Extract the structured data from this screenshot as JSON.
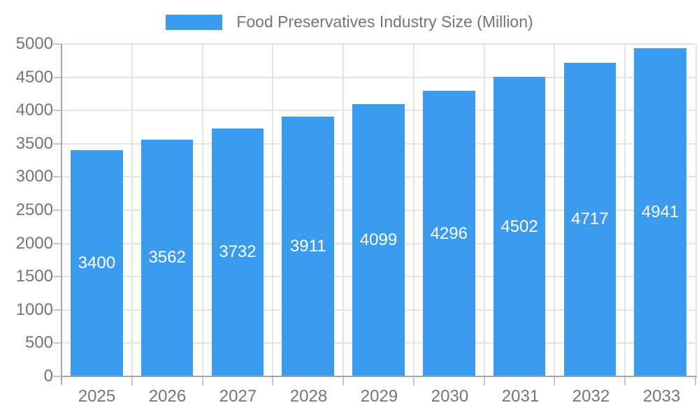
{
  "chart_data": {
    "type": "bar",
    "title": "Food Preservatives Industry Size (Million)",
    "legend": {
      "position": "top",
      "entries": [
        {
          "label": "Food Preservatives Industry Size (Million)",
          "color": "#3B9CEE"
        }
      ]
    },
    "categories": [
      "2025",
      "2026",
      "2027",
      "2028",
      "2029",
      "2030",
      "2031",
      "2032",
      "2033"
    ],
    "series": [
      {
        "name": "Food Preservatives Industry Size (Million)",
        "values": [
          3400,
          3562,
          3732,
          3911,
          4099,
          4296,
          4502,
          4717,
          4941
        ]
      }
    ],
    "xlabel": "",
    "ylabel": "",
    "ylim": [
      0,
      5000
    ],
    "ytick_step": 500,
    "yticks": [
      0,
      500,
      1000,
      1500,
      2000,
      2500,
      3000,
      3500,
      4000,
      4500,
      5000
    ],
    "grid": true,
    "bar_color": "#3B9CEE",
    "value_labels": {
      "position": "center-of-bar",
      "color": "#FFFFFF"
    }
  },
  "colors": {
    "bar": "#3B9CEE",
    "grid": "#E4E4E4",
    "axis": "#A6A6A6",
    "tick": "#C6C6C6",
    "text": "#757575",
    "value_label": "#FFFFFF",
    "background": "#FFFFFF"
  }
}
